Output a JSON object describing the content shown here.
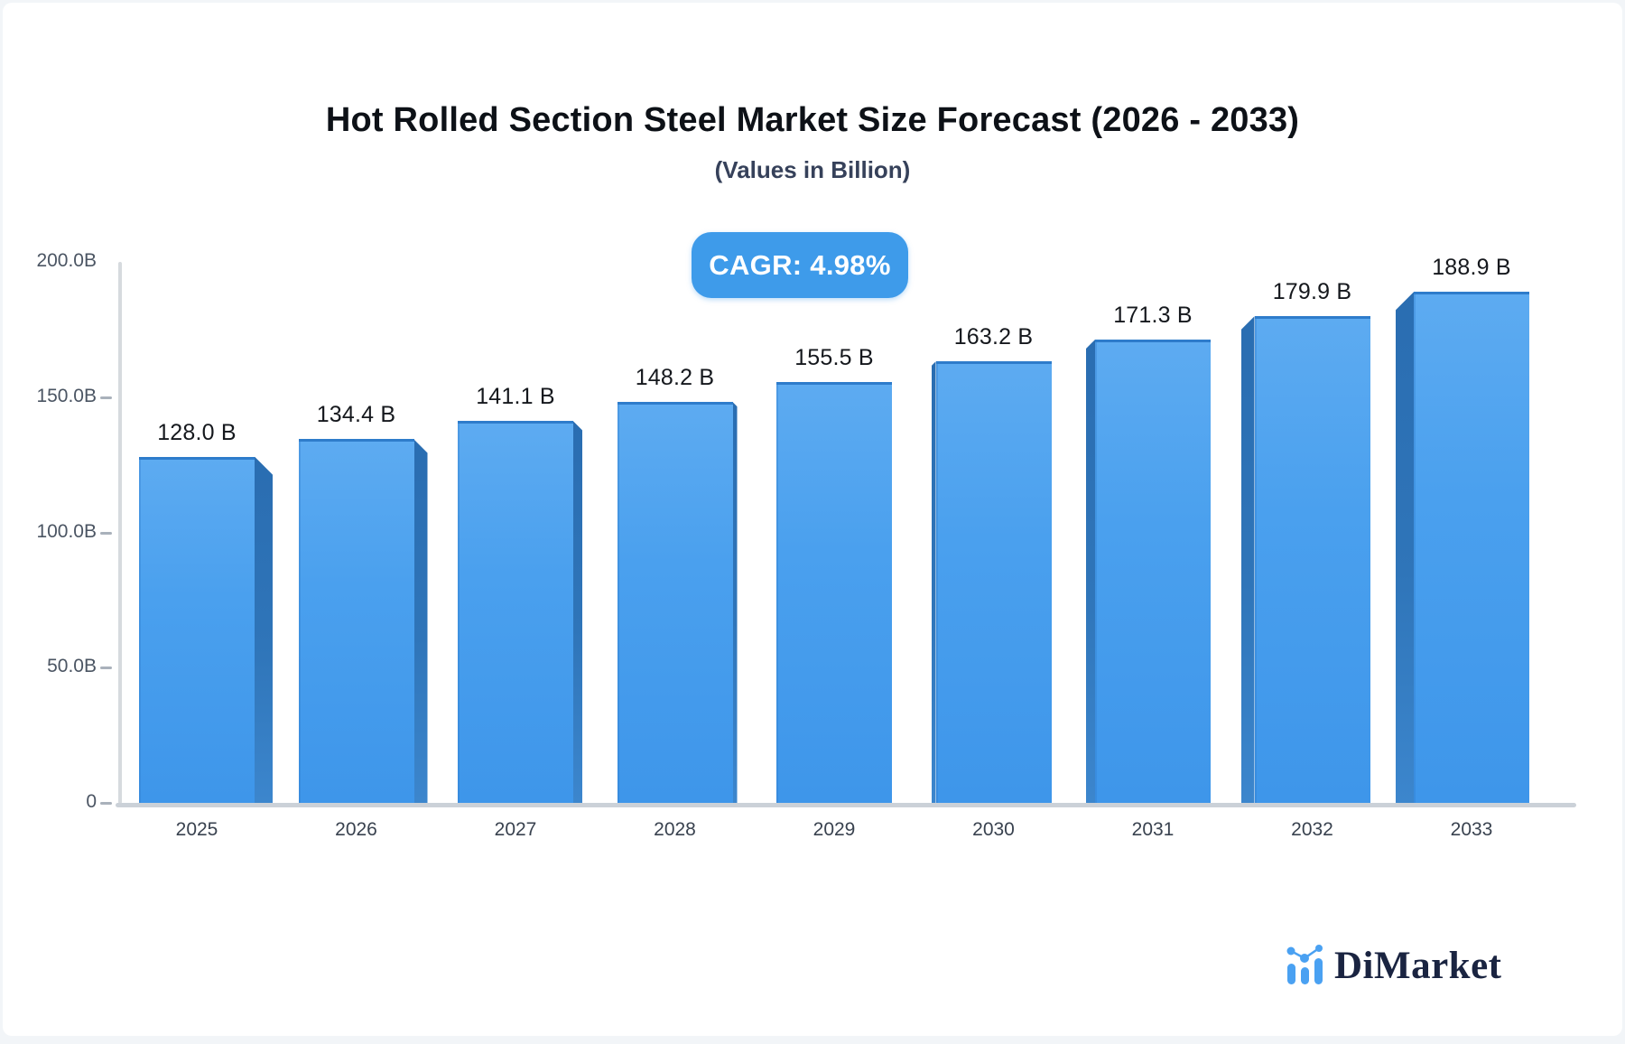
{
  "header": {
    "title": "Hot Rolled Section Steel Market Size Forecast (2026 - 2033)",
    "subtitle": "(Values in Billion)"
  },
  "badge": {
    "label": "CAGR: 4.98%"
  },
  "watermark": {
    "brand": "DiMarket",
    "icon": "bar-chart-trend-icon"
  },
  "colors": {
    "bar_face": "#4aa0ee",
    "bar_face_top": "#2e7ccb",
    "bar_side": "#2f75b9",
    "badge_bg": "#3e9bea",
    "axis_line": "#d6dade",
    "baseline": "#cbd1d8",
    "logo_blue": "#4aa1f2",
    "logo_navy": "#1a2441"
  },
  "chart_data": {
    "type": "bar",
    "title": "Hot Rolled Section Steel Market Size Forecast (2026 - 2033)",
    "subtitle": "(Values in Billion)",
    "categories": [
      "2025",
      "2026",
      "2027",
      "2028",
      "2029",
      "2030",
      "2031",
      "2032",
      "2033"
    ],
    "values": [
      128.0,
      134.4,
      141.1,
      148.2,
      155.5,
      163.2,
      171.3,
      179.9,
      188.9
    ],
    "value_labels": [
      "128.0 B",
      "134.4 B",
      "141.1 B",
      "148.2 B",
      "155.5 B",
      "163.2 B",
      "171.3 B",
      "179.9 B",
      "188.9 B"
    ],
    "unit": "Billion",
    "xlabel": "",
    "ylabel": "",
    "ylim": [
      0,
      200
    ],
    "ytick_values": [
      200,
      150,
      100,
      50,
      0
    ],
    "ytick_labels": [
      "200.0B",
      "150.0B",
      "100.0B",
      "50.0B",
      "0"
    ],
    "grid": false,
    "legend": false,
    "style": "3d-perspective-bars"
  }
}
